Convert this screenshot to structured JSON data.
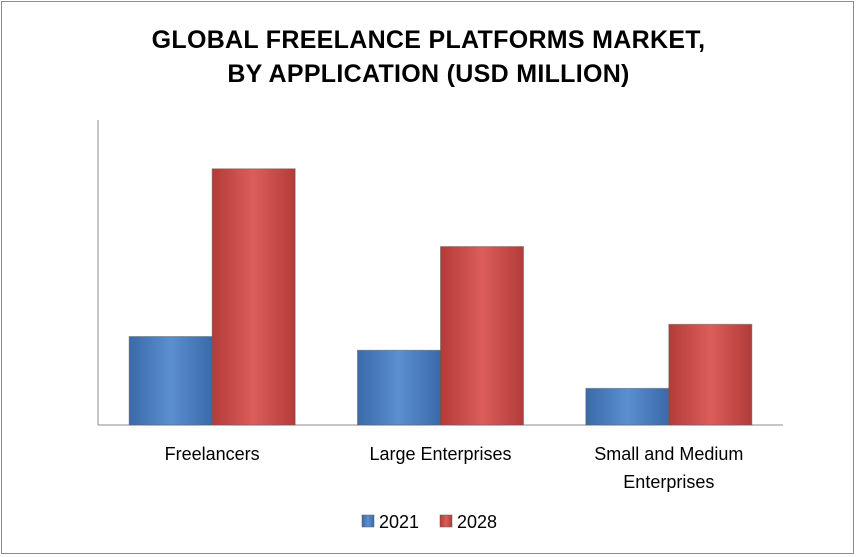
{
  "chart_data": {
    "type": "bar",
    "title": "GLOBAL FREELANCE PLATFORMS MARKET, BY APPLICATION (USD MILLION)",
    "title_lines": [
      "GLOBAL FREELANCE PLATFORMS MARKET,",
      "BY APPLICATION (USD MILLION)"
    ],
    "categories": [
      "Freelancers",
      "Large Enterprises",
      "Small and Medium Enterprises"
    ],
    "category_lines": [
      [
        "Freelancers"
      ],
      [
        "Large Enterprises"
      ],
      [
        "Small and Medium",
        "Enterprises"
      ]
    ],
    "series": [
      {
        "name": "2021",
        "values": [
          29,
          24.5,
          12
        ],
        "color": "#4f81bd"
      },
      {
        "name": "2028",
        "values": [
          84,
          58.5,
          33
        ],
        "color": "#c0504d"
      }
    ],
    "ylim": [
      0,
      100
    ],
    "grid": false,
    "legend_position": "bottom"
  }
}
